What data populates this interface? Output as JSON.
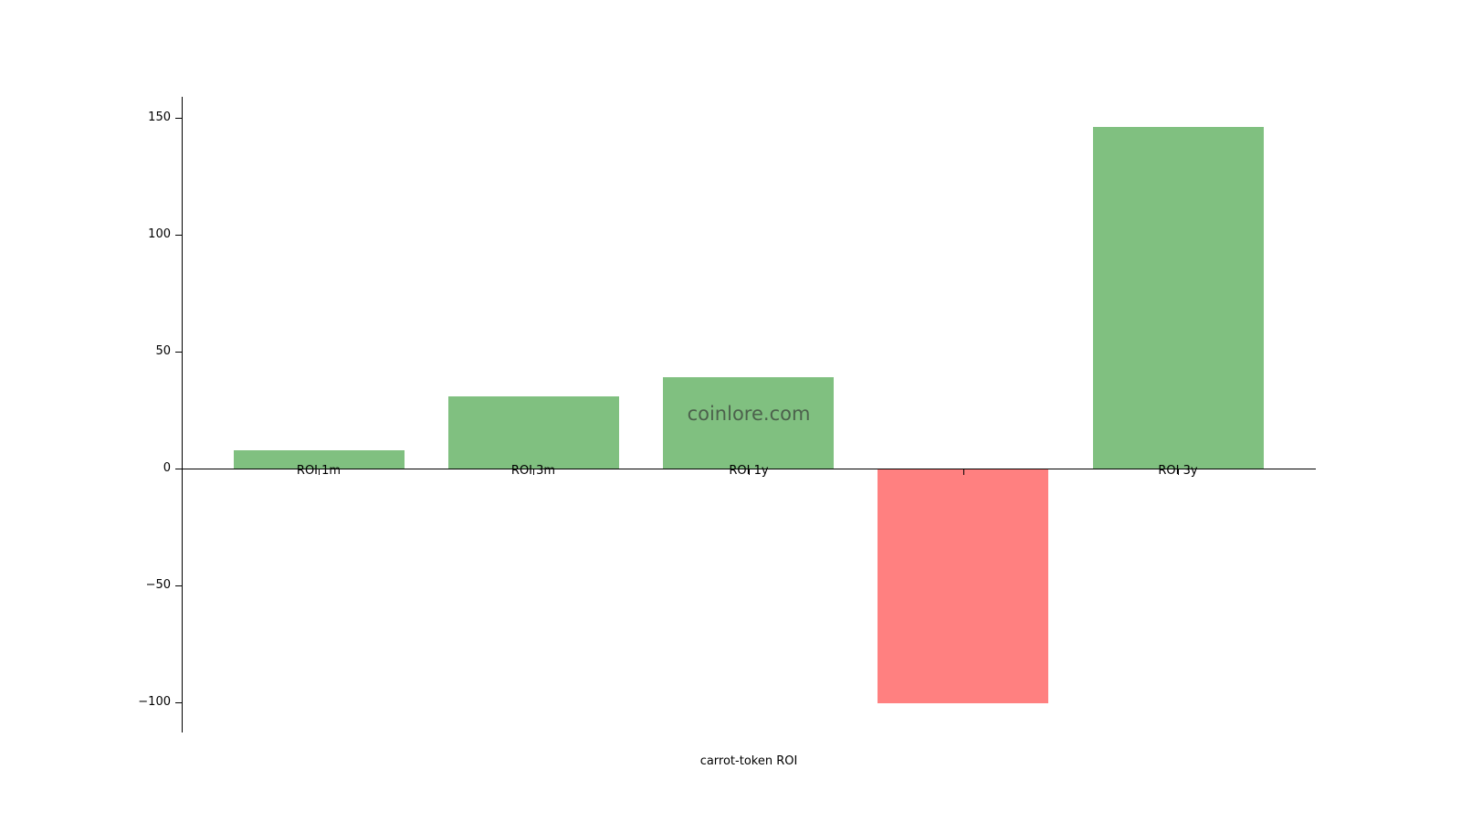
{
  "chart_data": {
    "type": "bar",
    "title": "carrot-token ROI",
    "watermark": "coinlore.com",
    "categories": [
      "ROI 1m",
      "ROI 3m",
      "ROI 1y",
      "",
      "ROI 3y"
    ],
    "values": [
      8,
      31,
      39,
      -100,
      146
    ],
    "bar_colors": [
      "#80c080",
      "#80c080",
      "#80c080",
      "#ff8080",
      "#80c080"
    ],
    "positive_color": "#80c080",
    "negative_color": "#ff8080",
    "axis_color": "#000000",
    "yticks": [
      150,
      100,
      50,
      0,
      -50,
      -100
    ],
    "ytick_labels": [
      "150",
      "100",
      "50",
      "0",
      "−50",
      "−100"
    ],
    "ylim": [
      -113,
      159
    ],
    "xlabel": "",
    "ylabel": "",
    "grid": false,
    "legend": null
  }
}
